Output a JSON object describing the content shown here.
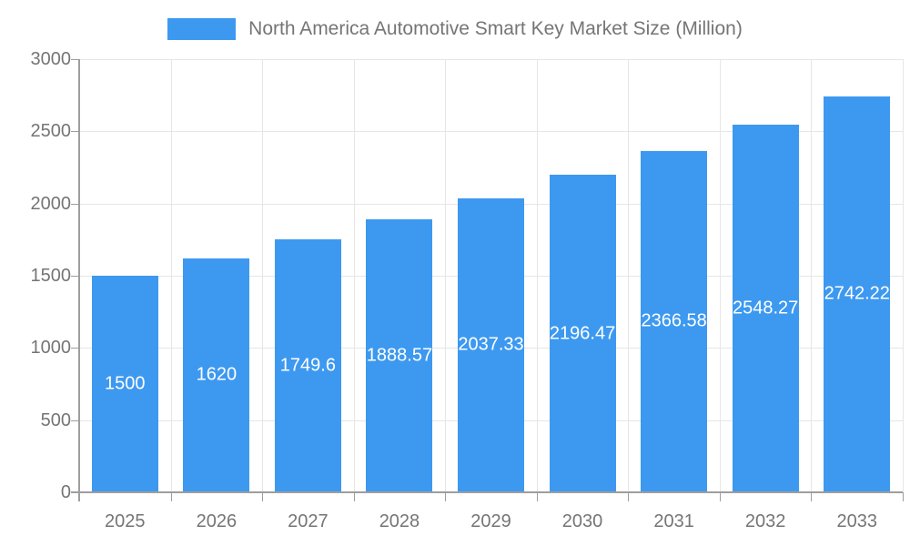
{
  "legend": {
    "label": "North America Automotive Smart Key Market Size (Million)"
  },
  "chart_data": {
    "type": "bar",
    "title": "North America Automotive Smart Key Market Size (Million)",
    "categories": [
      "2025",
      "2026",
      "2027",
      "2028",
      "2029",
      "2030",
      "2031",
      "2032",
      "2033"
    ],
    "values": [
      1500,
      1620,
      1749.6,
      1888.57,
      2037.33,
      2196.47,
      2366.58,
      2548.27,
      2742.22
    ],
    "value_labels": [
      "1500",
      "1620",
      "1749.6",
      "1888.57",
      "2037.33",
      "2196.47",
      "2366.58",
      "2548.27",
      "2742.22"
    ],
    "xlabel": "",
    "ylabel": "",
    "ylim": [
      0,
      3000
    ],
    "yticks": [
      0,
      500,
      1000,
      1500,
      2000,
      2500,
      3000
    ],
    "grid": true,
    "legend_position": "top",
    "value_label_position": "inside-center",
    "colors": {
      "bar": "#3d99f0",
      "grid": "#e6e6e6",
      "axis": "#9e9e9e",
      "text": "#757575",
      "value_label": "#ffffff",
      "background": "#ffffff"
    }
  }
}
